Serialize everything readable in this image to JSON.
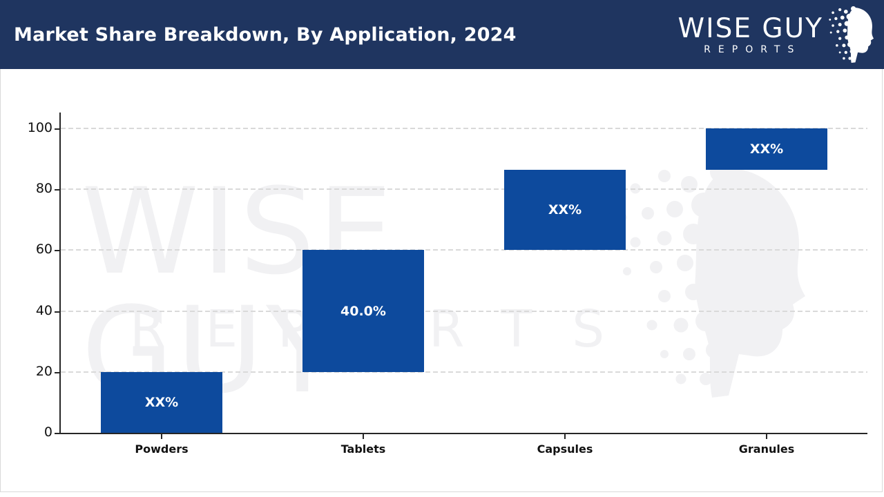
{
  "header": {
    "title": "Market Share Breakdown, By Application, 2024",
    "brand": {
      "line1": "WISE GUY",
      "line2": "REPORTS"
    },
    "bg_color": "#1f3560",
    "text_color": "#ffffff"
  },
  "watermark": {
    "line1": "WISE GUY",
    "line2": "REPORTS"
  },
  "chart_data": {
    "type": "bar",
    "subtype": "waterfall",
    "title": "Market Share Breakdown, By Application, 2024",
    "categories": [
      "Powders",
      "Tablets",
      "Capsules",
      "Granules"
    ],
    "bars": [
      {
        "category": "Powders",
        "base": 0,
        "top": 20,
        "label": "XX%"
      },
      {
        "category": "Tablets",
        "base": 20,
        "top": 60,
        "label": "40.0%"
      },
      {
        "category": "Capsules",
        "base": 60,
        "top": 86.3,
        "label": "XX%"
      },
      {
        "category": "Granules",
        "base": 86.3,
        "top": 100,
        "label": "XX%"
      }
    ],
    "ylim": [
      0,
      100
    ],
    "yticks": [
      0,
      20,
      40,
      60,
      80,
      100
    ],
    "xlabel": "",
    "ylabel": "",
    "grid": "horizontal-dashed",
    "legend": "none",
    "bar_color": "#0d4a9d",
    "bar_label_color": "#ffffff",
    "gridline_color": "#d9d9d9",
    "axis_color": "#262626"
  }
}
